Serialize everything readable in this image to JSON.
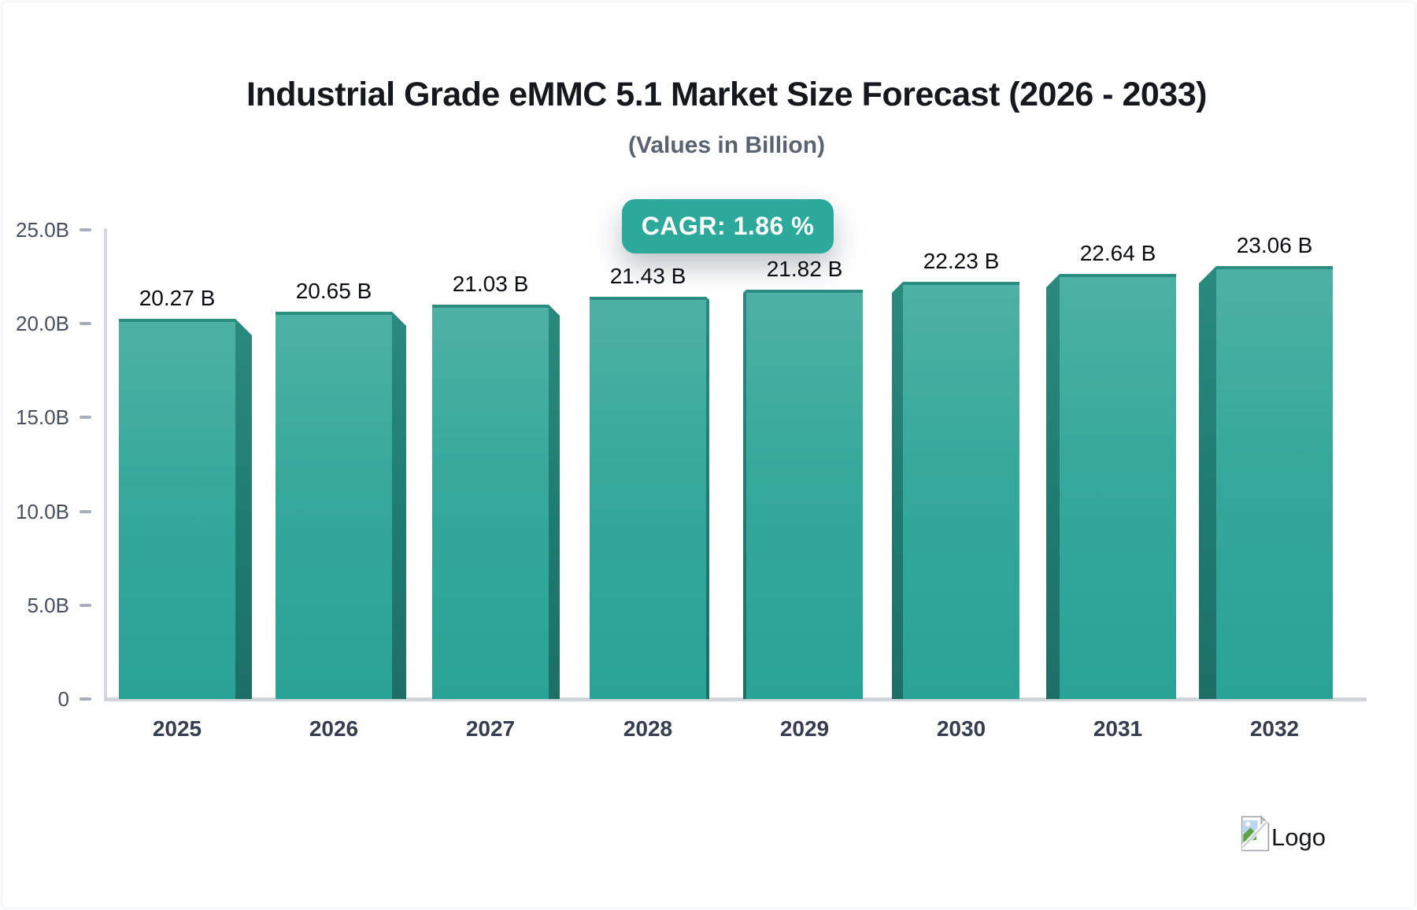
{
  "header": {
    "title": "Industrial Grade eMMC 5.1 Market Size Forecast (2026 - 2033)",
    "subtitle": "(Values in Billion)"
  },
  "cagr_badge": {
    "label": "CAGR: 1.86 %",
    "background_color": "#2ca99b",
    "text_color": "#ffffff"
  },
  "chart_data": {
    "type": "bar",
    "title": "Industrial Grade eMMC 5.1 Market Size Forecast (2026 - 2033)",
    "subtitle": "(Values in Billion)",
    "categories": [
      "2025",
      "2026",
      "2027",
      "2028",
      "2029",
      "2030",
      "2031",
      "2032"
    ],
    "values": [
      20.27,
      20.65,
      21.03,
      21.43,
      21.82,
      22.23,
      22.64,
      23.06
    ],
    "value_labels": [
      "20.27 B",
      "20.65 B",
      "21.03 B",
      "21.43 B",
      "21.82 B",
      "22.23 B",
      "22.64 B",
      "23.06 B"
    ],
    "xlabel": "",
    "ylabel": "",
    "ylim": [
      0,
      25
    ],
    "ytick_labels": [
      "25.0B",
      "20.0B",
      "15.0B",
      "10.0B",
      "5.0B",
      "0"
    ],
    "ytick_values": [
      25,
      20,
      15,
      10,
      5,
      0
    ],
    "grid": "off",
    "legend": "none",
    "bar_face_top_color": "#4db1a4",
    "bar_face_bottom_color": "#29a396",
    "bar_side_color": "#1e7a70",
    "bar_top_edge_color": "#2b8c80",
    "perspective": "center-vanishing-3d"
  },
  "footer": {
    "logo_icon": "broken-image-icon",
    "logo_text": "Logo"
  }
}
